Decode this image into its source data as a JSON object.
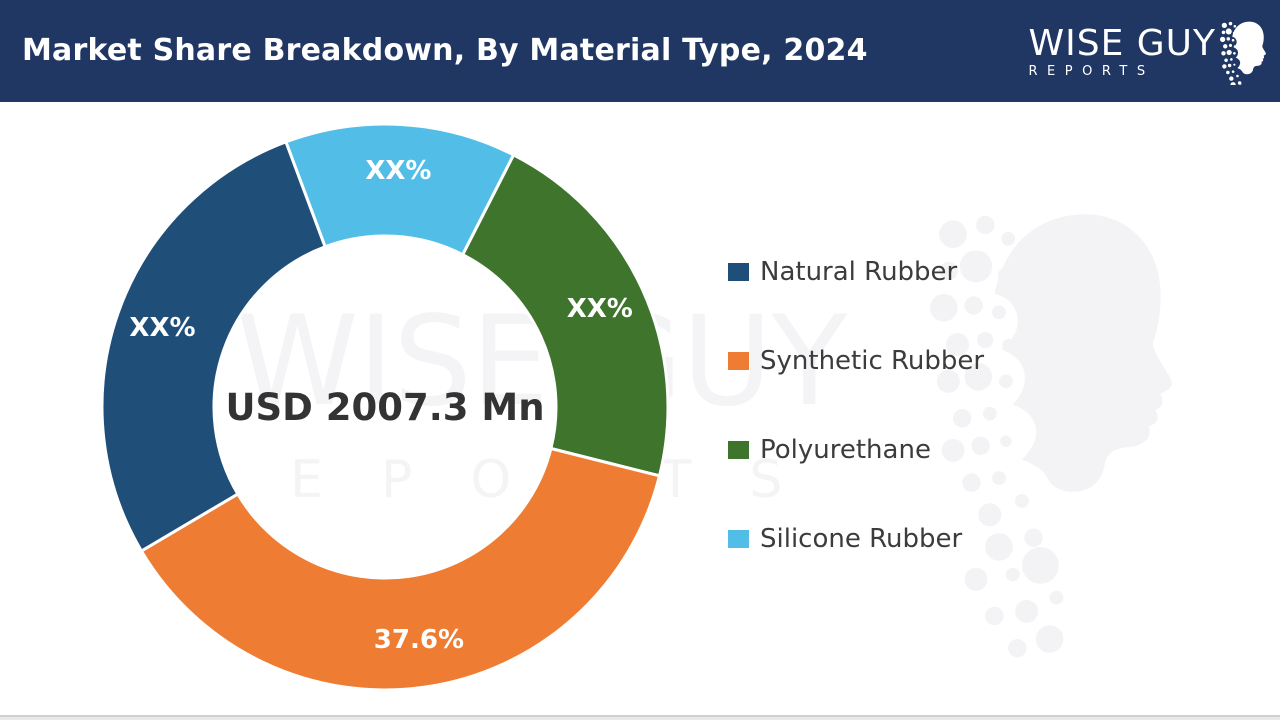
{
  "header": {
    "title": "Market Share Breakdown, By Material Type, 2024",
    "logo": {
      "name": "WISE GUY REPORTS",
      "line1": "WISE GUY",
      "line2": "REPORTS"
    }
  },
  "watermark": {
    "line1": "WISE GUY",
    "line2": "REPORTS"
  },
  "chart_data": {
    "type": "donut",
    "title": "Market Share Breakdown, By Material Type, 2024",
    "center_label": "USD 2007.3 Mn",
    "start_angle_deg": -20.5,
    "direction": "clockwise",
    "legend_position": "right",
    "segments": [
      {
        "name": "Silicone Rubber",
        "display_label": "XX%",
        "value_pct": 13.2,
        "color": "#52BEE8"
      },
      {
        "name": "Polyurethane",
        "display_label": "XX%",
        "value_pct": 21.4,
        "color": "#3E742C"
      },
      {
        "name": "Synthetic Rubber",
        "display_label": "37.6%",
        "value_pct": 37.6,
        "color": "#EE7D33"
      },
      {
        "name": "Natural Rubber",
        "display_label": "XX%",
        "value_pct": 27.8,
        "color": "#1F4E79"
      }
    ],
    "legend": [
      {
        "label": "Natural Rubber",
        "color": "#1F4E79"
      },
      {
        "label": "Synthetic Rubber",
        "color": "#EE7D33"
      },
      {
        "label": "Polyurethane",
        "color": "#3E742C"
      },
      {
        "label": "Silicone Rubber",
        "color": "#52BEE8"
      }
    ]
  }
}
